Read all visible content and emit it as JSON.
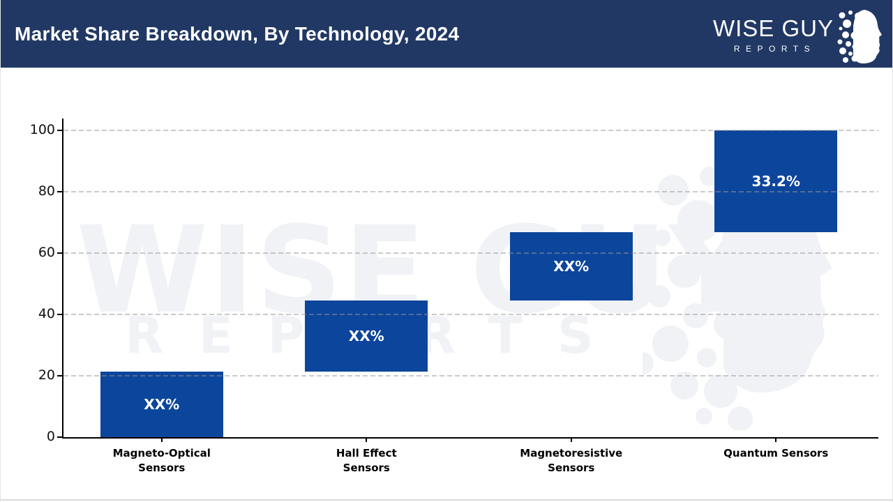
{
  "header": {
    "title": "Market Share Breakdown, By Technology, 2024",
    "bg_color": "#213864",
    "logo": {
      "line1": "WISE GUY",
      "line2": "REPORTS"
    }
  },
  "watermark": {
    "line1": "WISE GUY",
    "line2": "REPORTS"
  },
  "chart_data": {
    "type": "bar",
    "subtype": "waterfall",
    "title": "Market Share Breakdown, By Technology, 2024",
    "xlabel": "",
    "ylabel": "",
    "ylim": [
      0,
      100
    ],
    "yticks": [
      0,
      20,
      40,
      60,
      80,
      100
    ],
    "grid": "horizontal-dashed",
    "legend": "none",
    "bar_color": "#0c459c",
    "categories": [
      {
        "lines": [
          "Magneto-Optical",
          "Sensors"
        ]
      },
      {
        "lines": [
          "Hall Effect",
          "Sensors"
        ]
      },
      {
        "lines": [
          "Magnetoresistive",
          "Sensors"
        ]
      },
      {
        "lines": [
          "Quantum Sensors"
        ]
      }
    ],
    "segments": [
      {
        "category": "Magneto-Optical Sensors",
        "start": 0,
        "end": 21.3,
        "value": 21.3,
        "label": "XX%"
      },
      {
        "category": "Hall Effect Sensors",
        "start": 21.3,
        "end": 44.5,
        "value": 23.2,
        "label": "XX%"
      },
      {
        "category": "Magnetoresistive Sensors",
        "start": 44.5,
        "end": 66.8,
        "value": 22.3,
        "label": "XX%"
      },
      {
        "category": "Quantum Sensors",
        "start": 66.8,
        "end": 100.0,
        "value": 33.2,
        "label": "33.2%"
      }
    ]
  },
  "colors": {
    "axis": "#000000",
    "grid": "#c9c9c9",
    "bar": "#0c459c",
    "watermark": "#f0f2f5",
    "header_bg": "#213864"
  }
}
